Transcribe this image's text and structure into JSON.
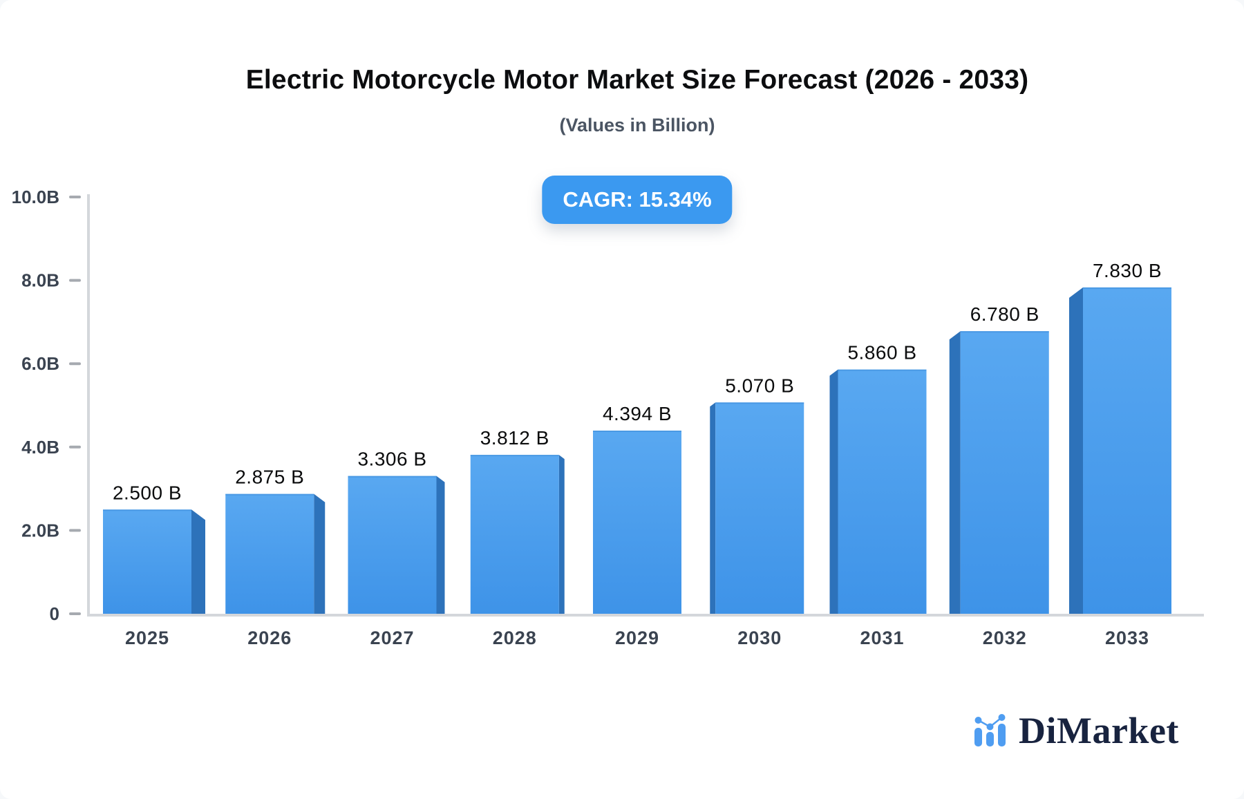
{
  "header": {
    "title": "Electric Motorcycle Motor Market Size Forecast (2026 - 2033)",
    "subtitle": "(Values in Billion)"
  },
  "badge": {
    "label": "CAGR: 15.34%",
    "bg_color": "#3b99f0",
    "text_color": "#ffffff"
  },
  "brand": {
    "name": "DiMarket",
    "icon": "dimarket-logo-icon",
    "icon_color": "#4f9df1",
    "text_color": "#18233f"
  },
  "chart_data": {
    "type": "bar",
    "title": "Electric Motorcycle Motor Market Size Forecast (2026 - 2033)",
    "subtitle": "(Values in Billion)",
    "cagr_annotation": "CAGR: 15.34%",
    "categories": [
      "2025",
      "2026",
      "2027",
      "2028",
      "2029",
      "2030",
      "2031",
      "2032",
      "2033"
    ],
    "values": [
      2.5,
      2.875,
      3.306,
      3.812,
      4.394,
      5.07,
      5.86,
      6.78,
      7.83
    ],
    "value_labels": [
      "2.500 B",
      "2.875 B",
      "3.306 B",
      "3.812 B",
      "4.394 B",
      "5.070 B",
      "5.860 B",
      "6.780 B",
      "7.830 B"
    ],
    "unit": "Billion",
    "xlabel": "",
    "ylabel": "",
    "ylim": [
      0,
      10
    ],
    "yticks": [
      {
        "value": 0,
        "label": "0"
      },
      {
        "value": 2,
        "label": "2.0B"
      },
      {
        "value": 4,
        "label": "4.0B"
      },
      {
        "value": 6,
        "label": "6.0B"
      },
      {
        "value": 8,
        "label": "8.0B"
      },
      {
        "value": 10,
        "label": "10.0B"
      }
    ],
    "grid": false,
    "legend": false,
    "style": {
      "effect": "3d-bars-center-perspective",
      "bar_front_top": "#59a8f1",
      "bar_front_bottom": "#3e93e8",
      "bar_side": "#2d72ba",
      "axis_color": "#d4d7db",
      "tick_dash_color": "#a6aab0",
      "axis_label_color": "#3a4350",
      "value_label_color": "#0b0c0d"
    }
  }
}
